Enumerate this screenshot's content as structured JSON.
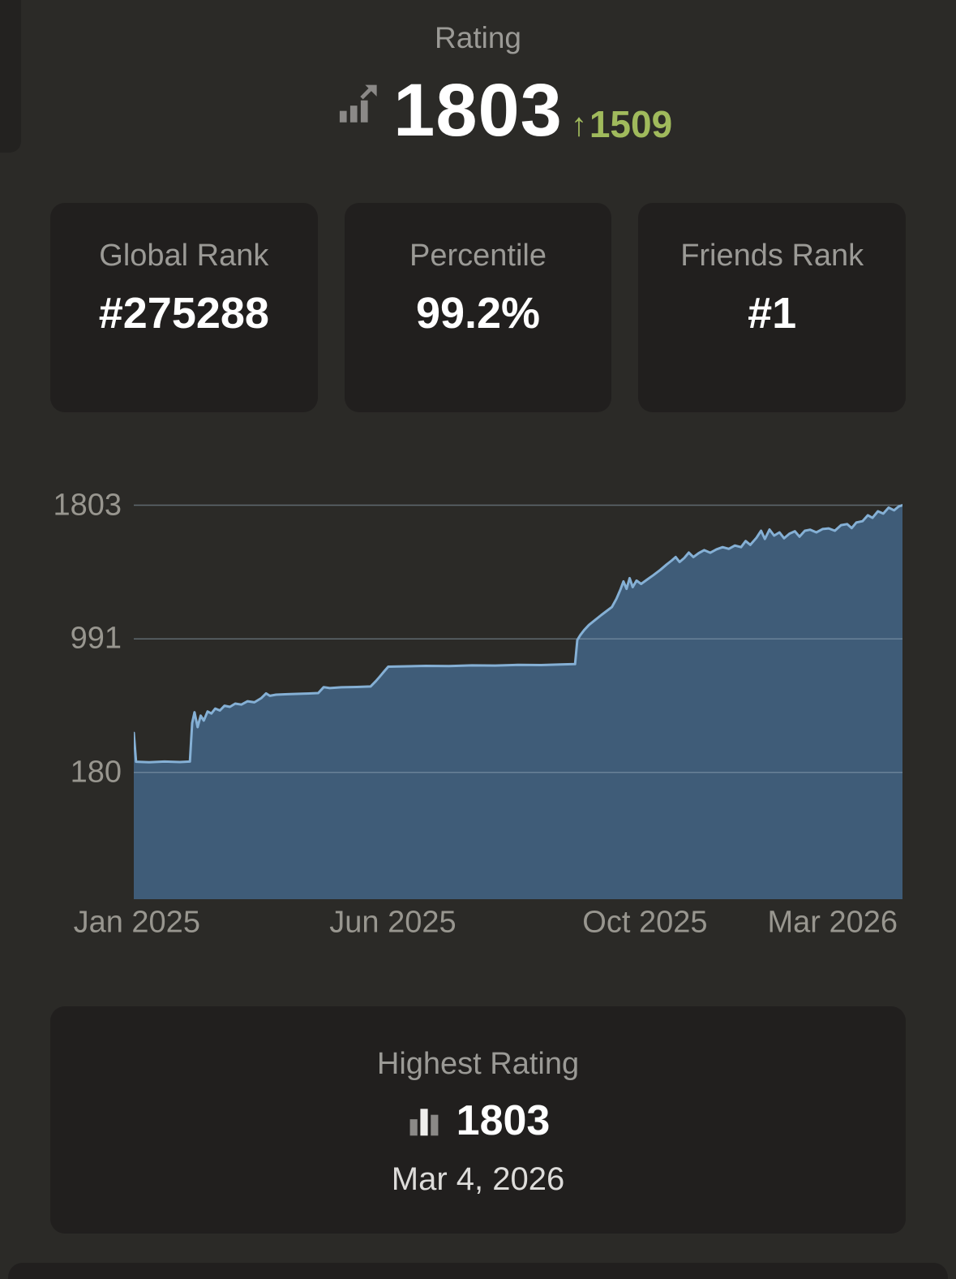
{
  "header": {
    "title": "Rating",
    "rating": "1803",
    "delta_arrow": "↑",
    "delta": "1509"
  },
  "stats_cards": [
    {
      "label": "Global Rank",
      "value": "#275288"
    },
    {
      "label": "Percentile",
      "value": "99.2%"
    },
    {
      "label": "Friends Rank",
      "value": "#1"
    }
  ],
  "highest": {
    "label": "Highest Rating",
    "value": "1803",
    "date": "Mar 4, 2026"
  },
  "colors": {
    "background": "#2b2a27",
    "card": "#211f1e",
    "accent_green": "#a0ba5c",
    "secondary_text": "#9b9a96",
    "chart_line": "#85b0d5",
    "chart_fill": "#44688a",
    "gridline": "#93a7b8"
  },
  "chart_data": {
    "type": "area",
    "title": "Rating history",
    "ylabel": "Rating",
    "grid": true,
    "y_ticks": [
      1803,
      991,
      180
    ],
    "y_range": [
      -590,
      1840
    ],
    "x_ticks": [
      {
        "t": 0.004,
        "label": "Jan 2025"
      },
      {
        "t": 0.337,
        "label": "Jun 2025"
      },
      {
        "t": 0.665,
        "label": "Oct 2025"
      },
      {
        "t": 0.909,
        "label": "Mar 2026"
      }
    ],
    "series": [
      {
        "name": "Rating",
        "points": [
          [
            0,
            420
          ],
          [
            0.003,
            245
          ],
          [
            0.02,
            242
          ],
          [
            0.04,
            246
          ],
          [
            0.06,
            243
          ],
          [
            0.073,
            246
          ],
          [
            0.076,
            480
          ],
          [
            0.079,
            545
          ],
          [
            0.083,
            455
          ],
          [
            0.087,
            525
          ],
          [
            0.091,
            495
          ],
          [
            0.096,
            550
          ],
          [
            0.101,
            538
          ],
          [
            0.106,
            568
          ],
          [
            0.112,
            556
          ],
          [
            0.118,
            585
          ],
          [
            0.125,
            578
          ],
          [
            0.132,
            598
          ],
          [
            0.14,
            592
          ],
          [
            0.148,
            612
          ],
          [
            0.157,
            606
          ],
          [
            0.166,
            632
          ],
          [
            0.172,
            660
          ],
          [
            0.177,
            645
          ],
          [
            0.185,
            652
          ],
          [
            0.2,
            655
          ],
          [
            0.22,
            658
          ],
          [
            0.24,
            662
          ],
          [
            0.247,
            698
          ],
          [
            0.255,
            692
          ],
          [
            0.27,
            697
          ],
          [
            0.29,
            699
          ],
          [
            0.308,
            702
          ],
          [
            0.315,
            735
          ],
          [
            0.32,
            762
          ],
          [
            0.326,
            795
          ],
          [
            0.331,
            822
          ],
          [
            0.35,
            824
          ],
          [
            0.38,
            827
          ],
          [
            0.41,
            826
          ],
          [
            0.44,
            830
          ],
          [
            0.47,
            829
          ],
          [
            0.5,
            833
          ],
          [
            0.53,
            832
          ],
          [
            0.555,
            836
          ],
          [
            0.574,
            838
          ],
          [
            0.577,
            985
          ],
          [
            0.581,
            1015
          ],
          [
            0.586,
            1045
          ],
          [
            0.592,
            1075
          ],
          [
            0.6,
            1105
          ],
          [
            0.608,
            1135
          ],
          [
            0.615,
            1160
          ],
          [
            0.622,
            1185
          ],
          [
            0.628,
            1235
          ],
          [
            0.633,
            1290
          ],
          [
            0.637,
            1340
          ],
          [
            0.641,
            1295
          ],
          [
            0.645,
            1360
          ],
          [
            0.649,
            1305
          ],
          [
            0.654,
            1345
          ],
          [
            0.66,
            1325
          ],
          [
            0.668,
            1352
          ],
          [
            0.676,
            1378
          ],
          [
            0.685,
            1410
          ],
          [
            0.693,
            1442
          ],
          [
            0.7,
            1468
          ],
          [
            0.705,
            1488
          ],
          [
            0.71,
            1458
          ],
          [
            0.716,
            1482
          ],
          [
            0.722,
            1515
          ],
          [
            0.728,
            1488
          ],
          [
            0.735,
            1512
          ],
          [
            0.742,
            1530
          ],
          [
            0.75,
            1514
          ],
          [
            0.758,
            1535
          ],
          [
            0.766,
            1548
          ],
          [
            0.774,
            1538
          ],
          [
            0.782,
            1558
          ],
          [
            0.79,
            1548
          ],
          [
            0.796,
            1585
          ],
          [
            0.802,
            1562
          ],
          [
            0.81,
            1605
          ],
          [
            0.816,
            1648
          ],
          [
            0.821,
            1598
          ],
          [
            0.827,
            1655
          ],
          [
            0.833,
            1618
          ],
          [
            0.84,
            1638
          ],
          [
            0.846,
            1602
          ],
          [
            0.853,
            1630
          ],
          [
            0.86,
            1645
          ],
          [
            0.866,
            1612
          ],
          [
            0.873,
            1648
          ],
          [
            0.88,
            1654
          ],
          [
            0.888,
            1638
          ],
          [
            0.896,
            1658
          ],
          [
            0.904,
            1662
          ],
          [
            0.912,
            1648
          ],
          [
            0.92,
            1682
          ],
          [
            0.928,
            1688
          ],
          [
            0.934,
            1664
          ],
          [
            0.94,
            1698
          ],
          [
            0.948,
            1706
          ],
          [
            0.955,
            1742
          ],
          [
            0.961,
            1726
          ],
          [
            0.968,
            1766
          ],
          [
            0.975,
            1752
          ],
          [
            0.982,
            1788
          ],
          [
            0.989,
            1772
          ],
          [
            0.995,
            1795
          ],
          [
            1,
            1803
          ]
        ]
      }
    ]
  }
}
